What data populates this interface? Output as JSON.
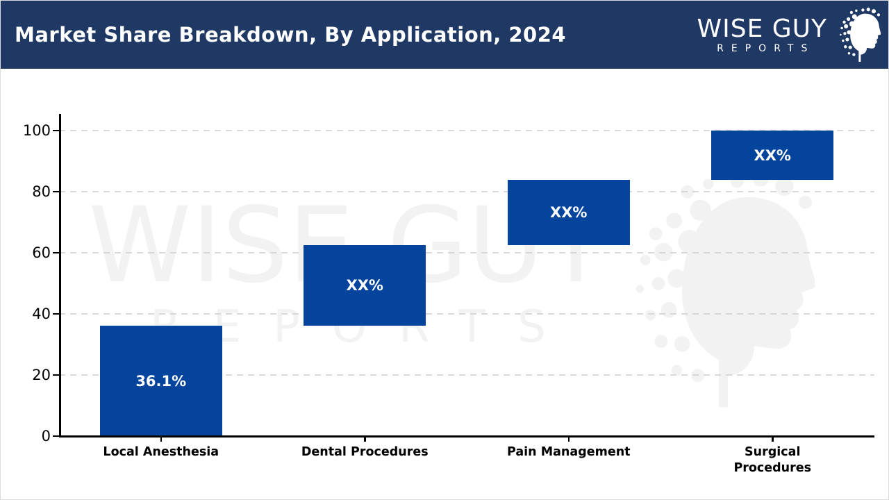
{
  "header": {
    "title": "Market Share Breakdown, By Application, 2024",
    "logo": {
      "line1": "WISE GUY",
      "line2": "REPORTS"
    }
  },
  "watermark": {
    "line1": "WISE GUY",
    "line2": "REPORTS"
  },
  "colors": {
    "header_bg": "#1f3864",
    "bar": "#04449c",
    "grid": "#d8d8d8",
    "axis": "#000000",
    "bar_label": "#ffffff",
    "watermark": "#f2f2f2"
  },
  "chart_data": {
    "type": "bar",
    "subtype": "floating-waterfall",
    "title": "Market Share Breakdown, By Application, 2024",
    "xlabel": "",
    "ylabel": "",
    "ylim": [
      0,
      105
    ],
    "yticks": [
      0,
      20,
      40,
      60,
      80,
      100
    ],
    "grid": "horizontal-dashed",
    "legend": "none",
    "categories": [
      "Local Anesthesia",
      "Dental Procedures",
      "Pain Management",
      "Surgical Procedures"
    ],
    "bars": [
      {
        "category": "Local Anesthesia",
        "category_lines": [
          "Local Anesthesia"
        ],
        "start": 0,
        "end": 36.1,
        "label": "36.1%"
      },
      {
        "category": "Dental Procedures",
        "category_lines": [
          "Dental Procedures"
        ],
        "start": 36.1,
        "end": 62.4,
        "label": "XX%"
      },
      {
        "category": "Pain Management",
        "category_lines": [
          "Pain Management"
        ],
        "start": 62.4,
        "end": 83.8,
        "label": "XX%"
      },
      {
        "category": "Surgical Procedures",
        "category_lines": [
          "Surgical",
          "Procedures"
        ],
        "start": 83.8,
        "end": 100,
        "label": "XX%"
      }
    ]
  }
}
